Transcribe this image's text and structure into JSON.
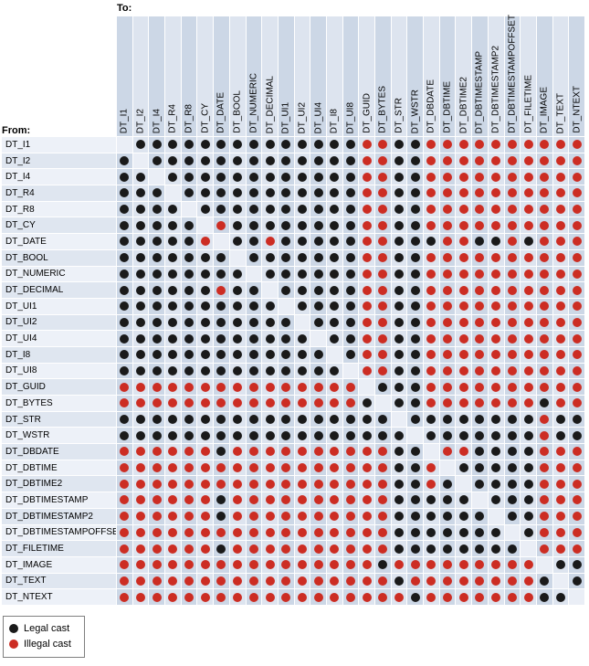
{
  "figure": {
    "to_label": "To:",
    "from_label": "From:"
  },
  "legend": {
    "items": [
      {
        "name": "legal",
        "label": "Legal cast",
        "color": "#1a1a1a"
      },
      {
        "name": "illegal",
        "label": "Illegal cast",
        "color": "#cc2d23"
      }
    ]
  },
  "colors": {
    "legal_dot": "#1a1a1a",
    "illegal_dot": "#cc2d23",
    "column_stripe_dark": "#ccd7e6",
    "column_stripe_light": "#dde4ef",
    "diagonal_cell": "#eaeef6",
    "row_header_light": "#edf1f8",
    "row_header_dark": "#dfe6f0"
  },
  "chart_data": {
    "type": "heatmap",
    "x_label": "To:",
    "y_label": "From:",
    "legend": [
      "Legal cast",
      "Illegal cast"
    ],
    "categories": [
      "DT_I1",
      "DT_I2",
      "DT_I4",
      "DT_R4",
      "DT_R8",
      "DT_CY",
      "DT_DATE",
      "DT_BOOL",
      "DT_NUMERIC",
      "DT_DECIMAL",
      "DT_UI1",
      "DT_UI2",
      "DT_UI4",
      "DT_I8",
      "DT_UI8",
      "DT_GUID",
      "DT_BYTES",
      "DT_STR",
      "DT_WSTR",
      "DT_DBDATE",
      "DT_DBTIME",
      "DT_DBTIME2",
      "DT_DBTIMESTAMP",
      "DT_DBTIMESTAMP2",
      "DT_DBTIMESTAMPOFFSET",
      "DT_FILETIME",
      "DT_IMAGE",
      "DT_TEXT",
      "DT_NTEXT"
    ],
    "cell_encoding": {
      "1": "legal cast (black dot)",
      "0": "illegal cast (red dot)",
      ".": "same type (no dot)"
    },
    "rows": [
      {
        "from": "DT_I1",
        "cells": ".1111111111111100110000000000"
      },
      {
        "from": "DT_I2",
        "cells": "1.111111111111100110000000000"
      },
      {
        "from": "DT_I4",
        "cells": "11.11111111111100110000000000"
      },
      {
        "from": "DT_R4",
        "cells": "111.1111111111100110000000000"
      },
      {
        "from": "DT_R8",
        "cells": "1111.111111111100110000000000"
      },
      {
        "from": "DT_CY",
        "cells": "11111.01111111100110000000000"
      },
      {
        "from": "DT_DATE",
        "cells": "111110.1101111100111001101000"
      },
      {
        "from": "DT_BOOL",
        "cells": "1111111.111111100110000000000"
      },
      {
        "from": "DT_NUMERIC",
        "cells": "11111111.11111100110000000000"
      },
      {
        "from": "DT_DECIMAL",
        "cells": "111111011.1111100110000000000"
      },
      {
        "from": "DT_UI1",
        "cells": "1111111111.111100110000000000"
      },
      {
        "from": "DT_UI2",
        "cells": "11111111111.11100110000000000"
      },
      {
        "from": "DT_UI4",
        "cells": "111111111111.1100110000000000"
      },
      {
        "from": "DT_I8",
        "cells": "1111111111111.100110000000000"
      },
      {
        "from": "DT_UI8",
        "cells": "11111111111111.00110000000000"
      },
      {
        "from": "DT_GUID",
        "cells": "000000000000000.1110000000000"
      },
      {
        "from": "DT_BYTES",
        "cells": "0000000000000001.110000000100"
      },
      {
        "from": "DT_STR",
        "cells": "11111111111111111.11111111011"
      },
      {
        "from": "DT_WSTR",
        "cells": "111111111111111111.1111111011"
      },
      {
        "from": "DT_DBDATE",
        "cells": "0000001000000000011.001111000"
      },
      {
        "from": "DT_DBTIME",
        "cells": "00000000000000000110.11111000"
      },
      {
        "from": "DT_DBTIME2",
        "cells": "000000000000000001101.1111000"
      },
      {
        "from": "DT_DBTIMESTAMP",
        "cells": "0000001000000000011111.111000"
      },
      {
        "from": "DT_DBTIMESTAMP2",
        "cells": "00000010000000000111111.11000"
      },
      {
        "from": "DT_DBTIMESTAMPOFFSET",
        "cells": "000000000000000001111111.1000"
      },
      {
        "from": "DT_FILETIME",
        "cells": "0000001000000000011111111.000"
      },
      {
        "from": "DT_IMAGE",
        "cells": "00000000000000001000000000.11"
      },
      {
        "from": "DT_TEXT",
        "cells": "000000000000000001000000001.1"
      },
      {
        "from": "DT_NTEXT",
        "cells": "0000000000000000001000000011."
      }
    ]
  }
}
